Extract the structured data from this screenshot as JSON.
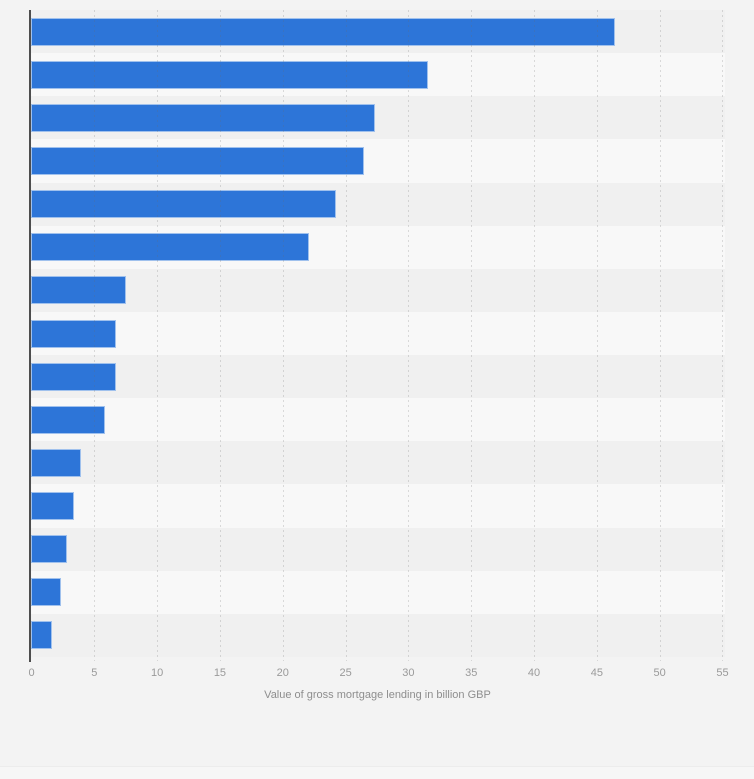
{
  "page": {
    "background_color": "#f3f3f3",
    "footer_strip_color": "#f6f6f6"
  },
  "chart_data": {
    "type": "bar",
    "orientation": "horizontal",
    "title": "",
    "xlabel": "Value of gross mortgage lending in billion GBP",
    "ylabel": "",
    "x_ticks": [
      "0",
      "5",
      "10",
      "15",
      "20",
      "25",
      "30",
      "35",
      "40",
      "45",
      "50",
      "55"
    ],
    "x_tick_values": [
      0,
      5,
      10,
      15,
      20,
      25,
      30,
      35,
      40,
      45,
      50,
      55
    ],
    "xlim": [
      0,
      55.2
    ],
    "grid": "vertical-dashed",
    "legend": "none",
    "categories": [
      "",
      "",
      "",
      "",
      "",
      "",
      "",
      "",
      "",
      "",
      "",
      "",
      "",
      "",
      ""
    ],
    "values": [
      46.5,
      31.6,
      27.4,
      26.5,
      24.3,
      22.1,
      7.6,
      6.8,
      6.8,
      5.9,
      4.0,
      3.4,
      2.9,
      2.4,
      1.7
    ],
    "colors": {
      "bar": "#2d75d8",
      "row_stripe_odd": "#f0f0f0",
      "row_stripe_even": "#f8f8f8",
      "axis_line": "#4d4d4d",
      "gridline": "#d2d2d2",
      "gridline_over_bar": "rgba(105,105,105,0.22)",
      "tick_label": "#9a9a9a",
      "axis_title": "#8e8e8e"
    }
  }
}
